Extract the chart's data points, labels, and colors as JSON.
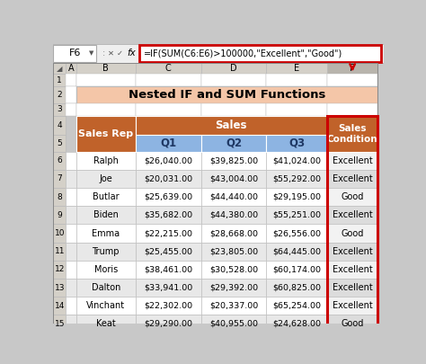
{
  "formula_bar_cell": "F6",
  "formula_bar_formula": "=IF(SUM(C6:E6)>100000,\"Excellent\",\"Good\")",
  "title": "Nested IF and SUM Functions",
  "title_bg": "#F4C6A8",
  "orange": "#C0622A",
  "blue": "#8DB4E2",
  "header_text_color": "#FFFFFF",
  "data": [
    [
      "Ralph",
      "$26,040.00",
      "$39,825.00",
      "$41,024.00",
      "Excellent"
    ],
    [
      "Joe",
      "$20,031.00",
      "$43,004.00",
      "$55,292.00",
      "Excellent"
    ],
    [
      "Butlar",
      "$25,639.00",
      "$44,440.00",
      "$29,195.00",
      "Good"
    ],
    [
      "Biden",
      "$35,682.00",
      "$44,380.00",
      "$55,251.00",
      "Excellent"
    ],
    [
      "Emma",
      "$22,215.00",
      "$28,668.00",
      "$26,556.00",
      "Good"
    ],
    [
      "Trump",
      "$25,455.00",
      "$23,805.00",
      "$64,445.00",
      "Excellent"
    ],
    [
      "Moris",
      "$38,461.00",
      "$30,528.00",
      "$60,174.00",
      "Excellent"
    ],
    [
      "Dalton",
      "$33,941.00",
      "$29,392.00",
      "$60,825.00",
      "Excellent"
    ],
    [
      "Vinchant",
      "$22,302.00",
      "$20,337.00",
      "$65,254.00",
      "Excellent"
    ],
    [
      "Keat",
      "$29,290.00",
      "$40,955.00",
      "$24,628.00",
      "Good"
    ]
  ],
  "row_bg_white": "#FFFFFF",
  "row_bg_gray": "#E8E8E8",
  "cond_col_bg_white": "#F2F2F2",
  "cond_col_bg_gray": "#DCDCDC",
  "grid_color": "#BBBBBB",
  "spreadsheet_header_bg": "#D4D0C8",
  "spreadsheet_header_selected": "#B8B4AC",
  "outer_bg": "#C8C8C8",
  "red": "#CC0000",
  "formula_bar_bg": "#FFFFFF"
}
